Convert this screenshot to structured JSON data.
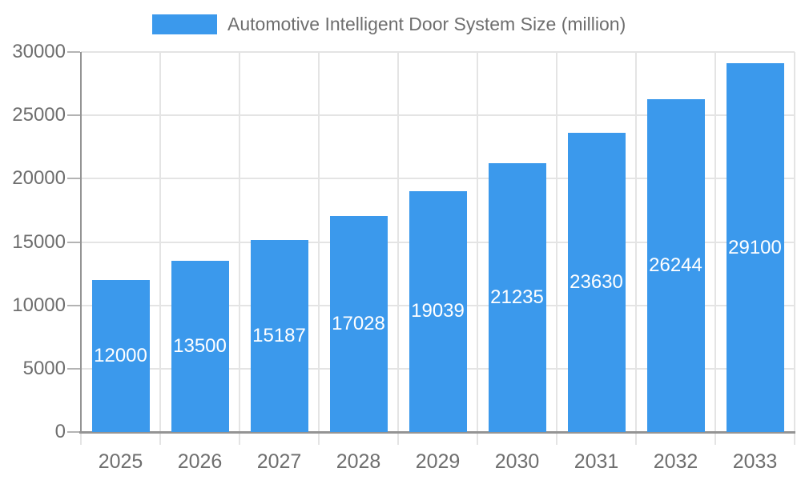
{
  "legend": {
    "label": "Automotive Intelligent Door System Size (million)"
  },
  "chart_data": {
    "type": "bar",
    "title": "Automotive Intelligent Door System Size (million)",
    "xlabel": "",
    "ylabel": "",
    "categories": [
      "2025",
      "2026",
      "2027",
      "2028",
      "2029",
      "2030",
      "2031",
      "2032",
      "2033"
    ],
    "values": [
      12000,
      13500,
      15187,
      17028,
      19039,
      21235,
      23630,
      26244,
      29100
    ],
    "value_labels": [
      "12000",
      "13500",
      "15187",
      "17028",
      "19039",
      "21235",
      "23630",
      "26244",
      "29100"
    ],
    "ylim": [
      0,
      30000
    ],
    "yticks": [
      0,
      5000,
      10000,
      15000,
      20000,
      25000,
      30000
    ],
    "ytick_labels": [
      "0",
      "5000",
      "10000",
      "15000",
      "20000",
      "25000",
      "30000"
    ],
    "grid": true,
    "legend_position": "top",
    "colors": {
      "bar": "#3B99EC",
      "gridline": "#E4E4E4",
      "axis_line": "#949494",
      "axis_tick": "#B3B3B3",
      "axis_label": "#6E6E6E",
      "value_label": "#FFFFFF",
      "background": "#FFFFFF"
    }
  }
}
